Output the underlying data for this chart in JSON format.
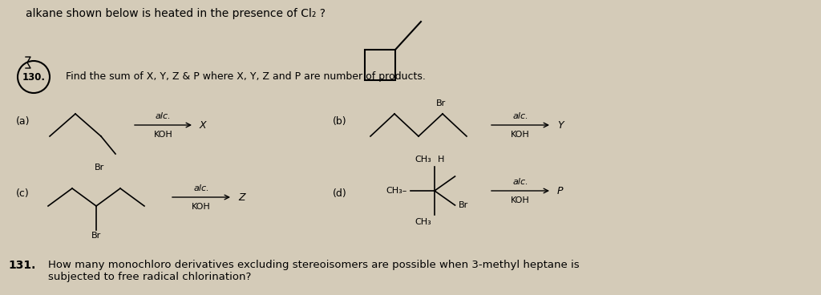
{
  "bg_color": "#d4cbb8",
  "title_line": "alkane shown below is heated in the presence of Cl₂ ?",
  "q130_desc": "Find the sum of X, Y, Z & P where X, Y, Z and P are number of products.",
  "q131_num": "131.",
  "q131_text": "How many monochloro derivatives excluding stereoisomers are possible when 3-methyl heptane is\nsubjected to free radical chlorination?",
  "label_a": "(a)",
  "label_b": "(b)",
  "label_c": "(c)",
  "label_d": "(d)"
}
